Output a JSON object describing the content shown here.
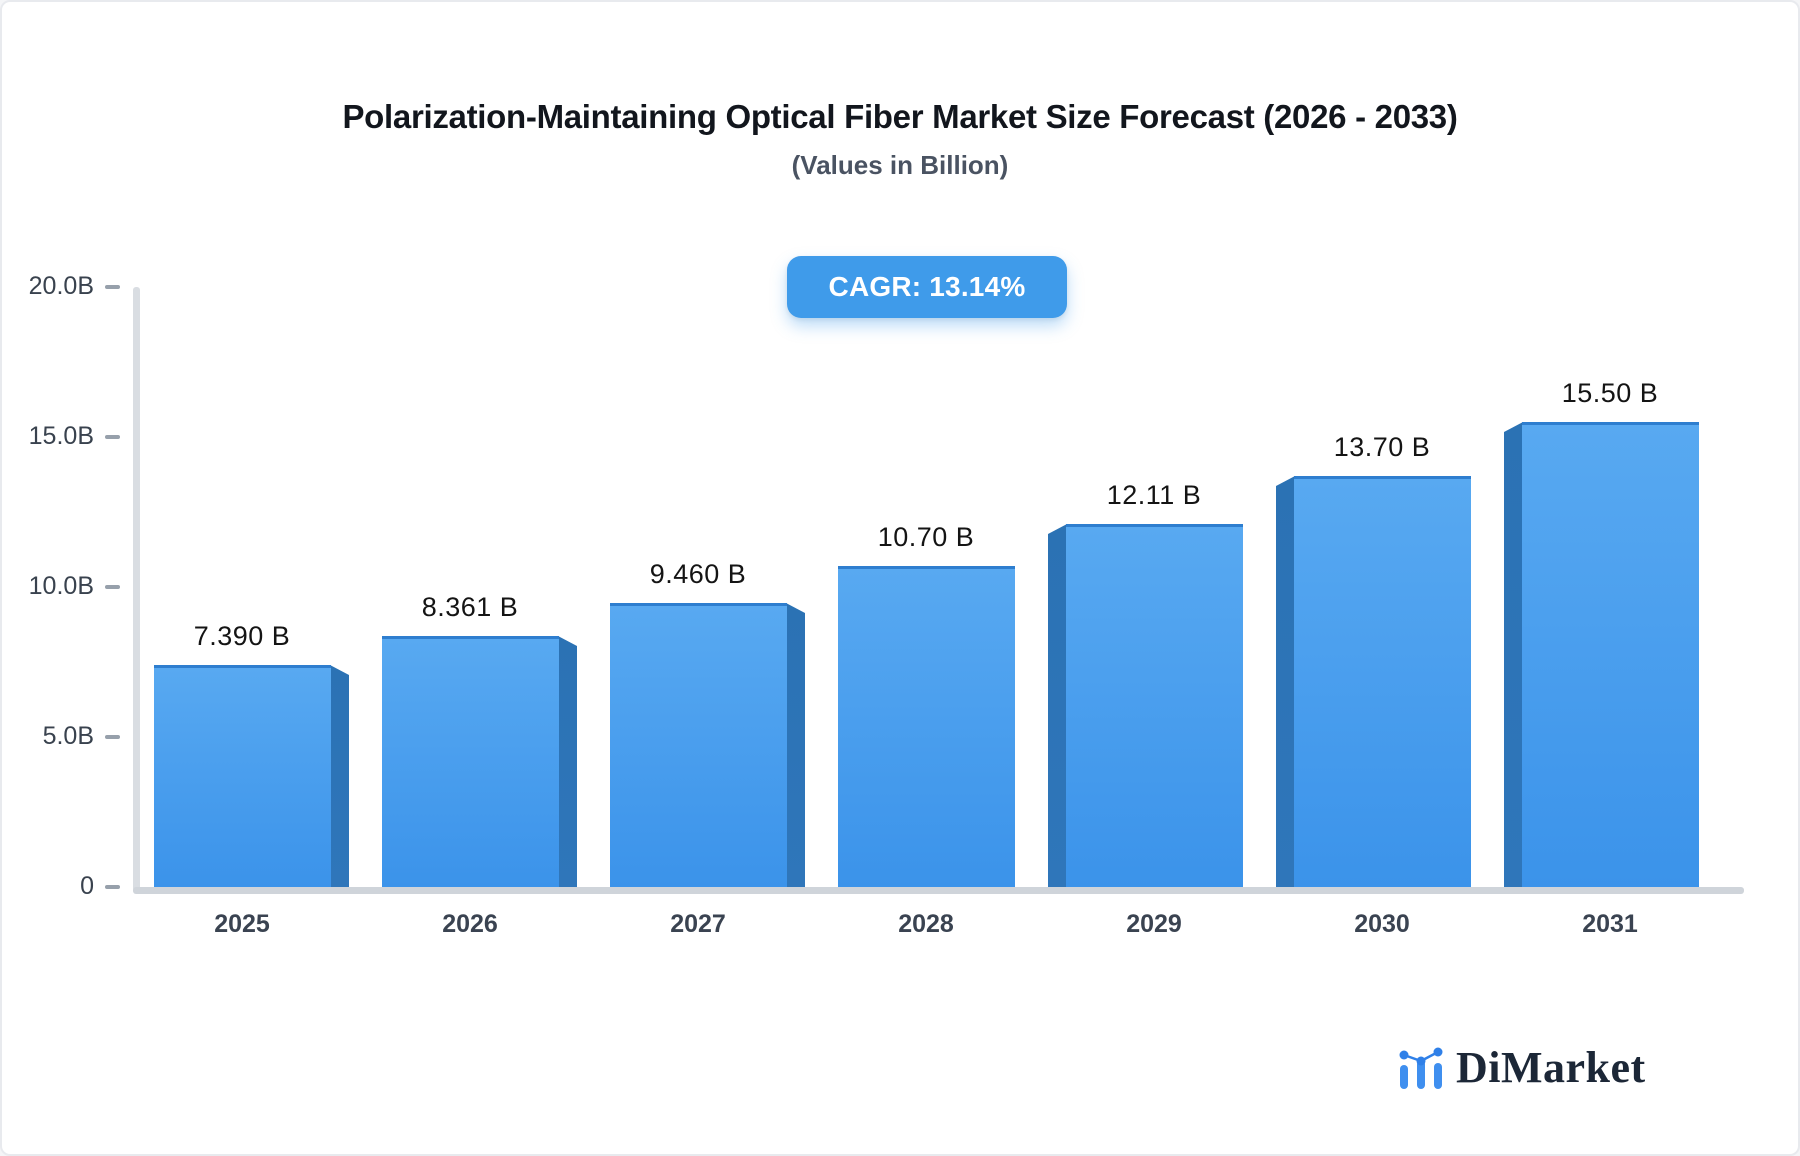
{
  "header": {
    "title": "Polarization-Maintaining Optical Fiber Market Size Forecast (2026 - 2033)",
    "subtitle": "(Values in Billion)",
    "cagr_badge": "CAGR: 13.14%"
  },
  "brand": {
    "name": "DiMarket",
    "icon": "bar-chart-logo-icon"
  },
  "colors": {
    "bar_face_top": "#58a9f1",
    "bar_face_bottom": "#3b93ea",
    "bar_face_edge": "#2e7ecf",
    "bar_side": "#2b72b4",
    "badge_background": "#3f9bea",
    "badge_text": "#ffffff",
    "axis_line": "#d2d7dd",
    "tick_text": "#39424e",
    "title_text": "#12161d",
    "brand_blue": "#3f8fef",
    "brand_navy": "#1c2737"
  },
  "chart_data": {
    "type": "bar",
    "title": "Polarization-Maintaining Optical Fiber Market Size Forecast (2026 - 2033)",
    "subtitle": "(Values in Billion)",
    "annotation": "CAGR: 13.14%",
    "categories": [
      "2025",
      "2026",
      "2027",
      "2028",
      "2029",
      "2030",
      "2031"
    ],
    "values": [
      7.39,
      8.361,
      9.46,
      10.7,
      12.11,
      13.7,
      15.5
    ],
    "value_labels": [
      "7.390 B",
      "8.361 B",
      "9.460 B",
      "10.70 B",
      "12.11 B",
      "13.70 B",
      "15.50 B"
    ],
    "xlabel": "",
    "ylabel": "",
    "ylim": [
      0,
      20
    ],
    "yticks": [
      {
        "label": "0",
        "value": 0
      },
      {
        "label": "5.0B",
        "value": 5
      },
      {
        "label": "10.0B",
        "value": 10
      },
      {
        "label": "15.0B",
        "value": 15
      },
      {
        "label": "20.0B",
        "value": 20
      }
    ],
    "grid": false,
    "legend": null,
    "style": "3d-perspective-bars, depth toward center vanishing point"
  }
}
